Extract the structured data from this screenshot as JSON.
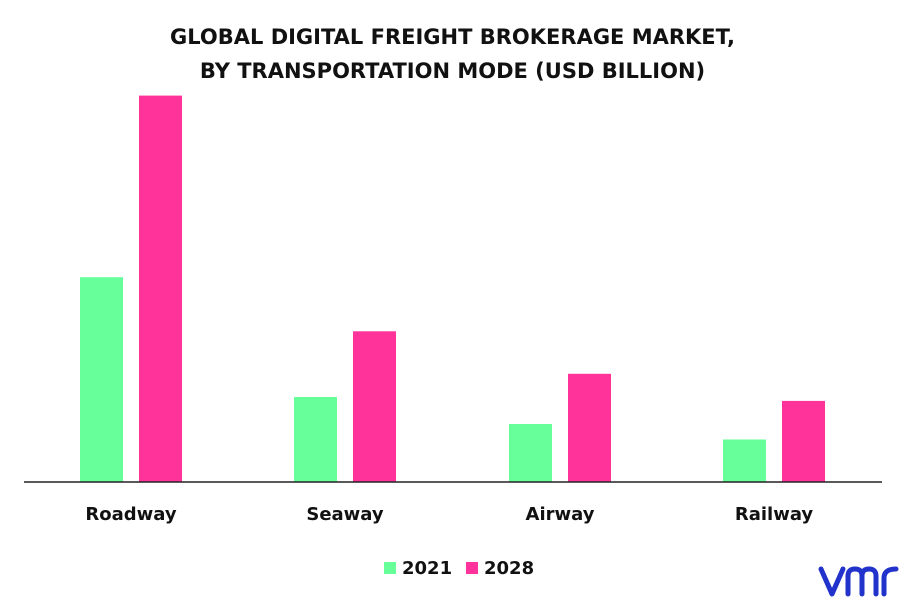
{
  "chart_data": {
    "type": "bar",
    "title": "GLOBAL DIGITAL FREIGHT BROKERAGE MARKET, BY TRANSPORTATION MODE (USD BILLION)",
    "title_lines": [
      "GLOBAL DIGITAL FREIGHT BROKERAGE MARKET,",
      "BY TRANSPORTATION MODE (USD BILLION)"
    ],
    "xlabel": "",
    "ylabel": "",
    "categories": [
      "Roadway",
      "Seaway",
      "Airway",
      "Railway"
    ],
    "series": [
      {
        "name": "2021",
        "color": "#66ff99",
        "values": [
          5.3,
          2.2,
          1.5,
          1.1
        ]
      },
      {
        "name": "2028",
        "color": "#ff3399",
        "values": [
          10.0,
          3.9,
          2.8,
          2.1
        ]
      }
    ],
    "ylim": [
      0,
      11
    ],
    "grid": false,
    "axis_labels_shown": false,
    "legend_position": "bottom-center",
    "axis_color": "#222222"
  },
  "brand": {
    "logo_text": "vmr",
    "logo_color": "#2233cc"
  }
}
